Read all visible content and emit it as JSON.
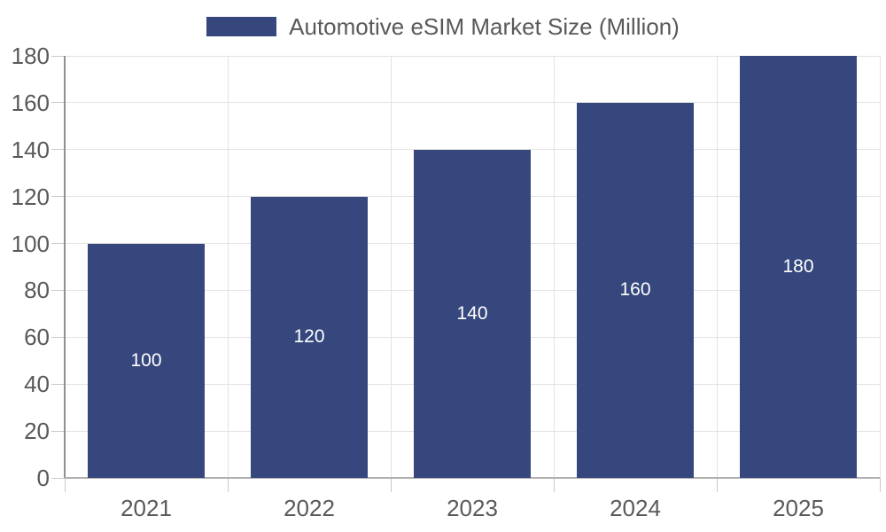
{
  "chart_data": {
    "type": "bar",
    "title": "Automotive eSIM Market Size (Million)",
    "categories": [
      "2021",
      "2022",
      "2023",
      "2024",
      "2025"
    ],
    "values": [
      100,
      120,
      140,
      160,
      180
    ],
    "xlabel": "",
    "ylabel": "",
    "ylim": [
      0,
      180
    ],
    "yticks": [
      0,
      20,
      40,
      60,
      80,
      100,
      120,
      140,
      160,
      180
    ],
    "grid": true,
    "legend_position": "top-center",
    "bar_labels_position": "inside-center",
    "colors": {
      "bar": "#36477d",
      "bar_label_text": "#ffffff",
      "axis_text": "#595959",
      "legend_text": "#595959",
      "gridline": "#e3e3e3",
      "tick_line": "#c9c9c9",
      "y_axis_line": "#8f8f8f",
      "x_axis_line": "#b1b1b1",
      "background": "#ffffff"
    }
  }
}
